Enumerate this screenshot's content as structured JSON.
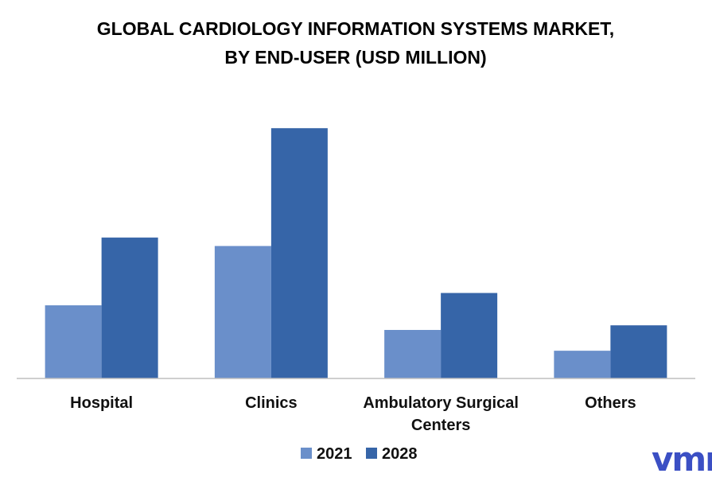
{
  "chart_data": {
    "type": "bar",
    "title_lines": [
      "GLOBAL CARDIOLOGY INFORMATION SYSTEMS MARKET,",
      "BY END-USER (USD MILLION)"
    ],
    "categories": [
      [
        "Hospital"
      ],
      [
        "Clinics"
      ],
      [
        "Ambulatory Surgical",
        "Centers"
      ],
      [
        "Others"
      ]
    ],
    "series": [
      {
        "name": "2021",
        "color": "#6a8fca",
        "values": [
          95,
          172,
          63,
          36
        ]
      },
      {
        "name": "2028",
        "color": "#3665a8",
        "values": [
          183,
          325,
          111,
          69
        ]
      }
    ],
    "ylim": [
      0,
      350
    ],
    "grid": false,
    "legend_position": "bottom-center",
    "xlabel": "",
    "ylabel": ""
  },
  "logo": {
    "text": "vmr",
    "color": "#3b4fc4"
  }
}
